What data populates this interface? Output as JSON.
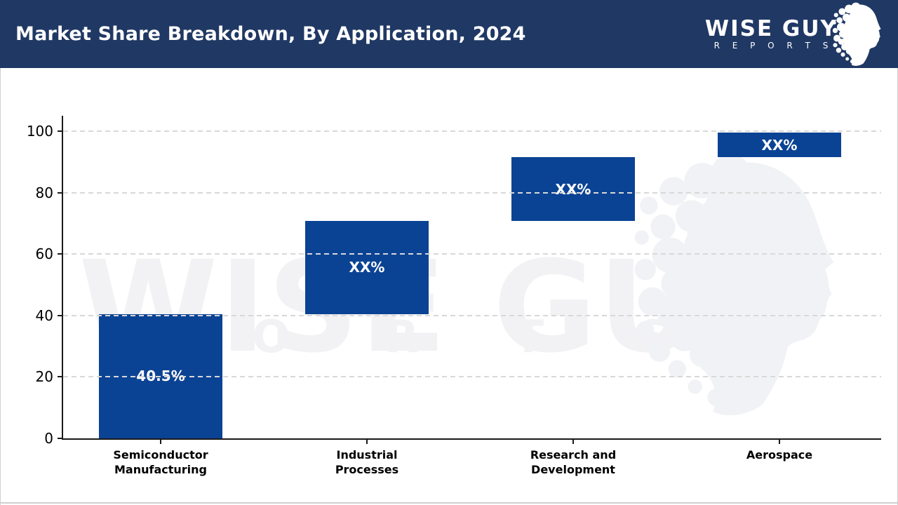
{
  "header": {
    "title": "Market Share Breakdown, By Application, 2024",
    "logo_line1": "WISE GUY",
    "logo_line2": "R E P O R T S"
  },
  "watermark": {
    "line1": "WISE GUY",
    "line2": "P O R T S"
  },
  "chart_data": {
    "type": "bar",
    "subtype": "waterfall",
    "title": "Market Share Breakdown, By Application, 2024",
    "xlabel": "",
    "ylabel": "",
    "ylim": [
      0,
      105
    ],
    "yticks": [
      0,
      20,
      40,
      60,
      80,
      100
    ],
    "grid": "dashed-horizontal",
    "legend": "none",
    "bar_color": "#0b4394",
    "value_label_color": "#ffffff",
    "categories": [
      "Semiconductor Manufacturing",
      "Industrial Processes",
      "Research and Development",
      "Aerospace"
    ],
    "segments": [
      {
        "category_lines": [
          "Semiconductor",
          "Manufacturing"
        ],
        "start": 0,
        "end": 40.5,
        "value": 40.5,
        "value_label": "40.5%"
      },
      {
        "category_lines": [
          "Industrial",
          "Processes"
        ],
        "start": 40.5,
        "end": 70.8,
        "value": 30.3,
        "value_label": "XX%"
      },
      {
        "category_lines": [
          "Research and",
          "Development"
        ],
        "start": 70.8,
        "end": 91.5,
        "value": 20.7,
        "value_label": "XX%"
      },
      {
        "category_lines": [
          "Aerospace"
        ],
        "start": 91.5,
        "end": 99.5,
        "value": 8.0,
        "value_label": "XX%"
      }
    ]
  }
}
